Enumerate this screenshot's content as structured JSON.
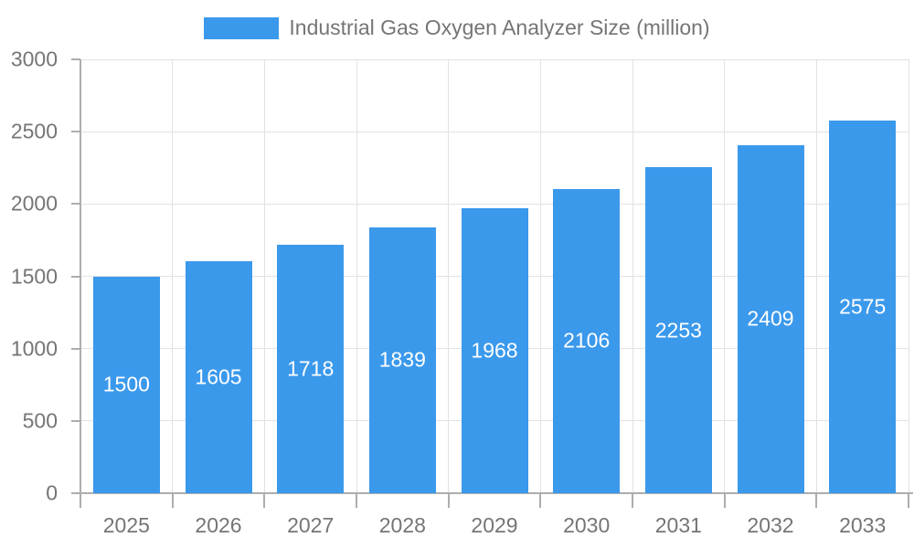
{
  "legend": {
    "label": "Industrial Gas Oxygen Analyzer Size (million)"
  },
  "chart_data": {
    "type": "bar",
    "title": "Industrial Gas Oxygen Analyzer Size (million)",
    "categories": [
      "2025",
      "2026",
      "2027",
      "2028",
      "2029",
      "2030",
      "2031",
      "2032",
      "2033"
    ],
    "values": [
      1500,
      1605,
      1718,
      1839,
      1968,
      2106,
      2253,
      2409,
      2575
    ],
    "xlabel": "",
    "ylabel": "",
    "ylim": [
      0,
      3000
    ],
    "yticks": [
      0,
      500,
      1000,
      1500,
      2000,
      2500,
      3000
    ],
    "grid": true,
    "legend_position": "top-center",
    "value_labels": "inside-center",
    "colors": {
      "bar": "#3B99EC",
      "value_label": "#FFFFFF",
      "axis_line": "#ADADAD",
      "gridline": "#E2E2E2",
      "tick_label": "#757575",
      "background": "#FFFFFF"
    }
  }
}
